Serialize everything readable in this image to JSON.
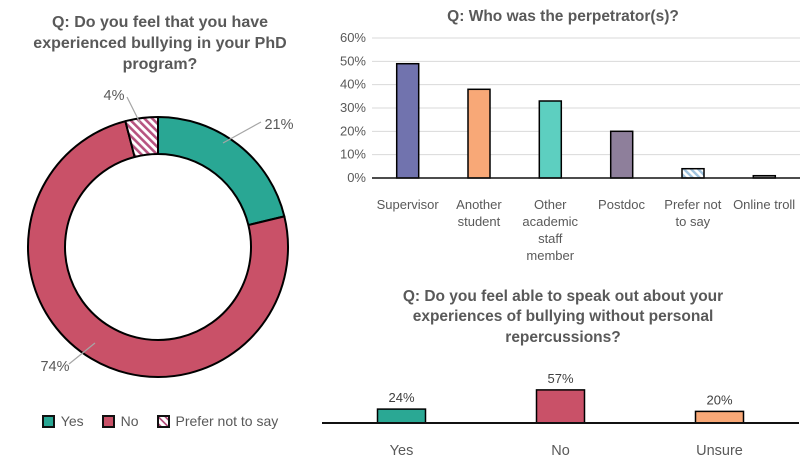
{
  "styles": {
    "background": "#FFFFFF",
    "title_color": "#595959",
    "axis_text_color": "#595959",
    "gridline_color": "#D9D9D9",
    "leader_line_color": "#A6A6A6",
    "data_label_color": "#3F3F3F",
    "outline_color": "#000000"
  },
  "chart_data": [
    {
      "id": "experienced-bullying-donut",
      "type": "pie",
      "subtype": "donut",
      "title": "Q: Do you feel that you have experienced bullying in your PhD program?",
      "unit": "%",
      "start_angle": "top",
      "direction": "clockwise",
      "legend_position": "bottom",
      "hatch_color": "#B75380",
      "slices": [
        {
          "label": "Yes",
          "value": 21,
          "display": "21%",
          "color": "#29A794",
          "hatch": false
        },
        {
          "label": "No",
          "value": 74,
          "display": "74%",
          "color": "#C95168",
          "hatch": false
        },
        {
          "label": "Prefer not to say",
          "value": 4,
          "display": "4%",
          "color": "#B75380",
          "hatch": true
        }
      ]
    },
    {
      "id": "perpetrator-bar",
      "type": "bar",
      "title": "Q: Who was the perpetrator(s)?",
      "unit": "%",
      "categories": [
        "Supervisor",
        "Another student",
        "Other academic staff member",
        "Postdoc",
        "Prefer not to say",
        "Online troll"
      ],
      "values": [
        49,
        38,
        33,
        20,
        4,
        1
      ],
      "bar_colors": [
        "#7173AE",
        "#F8A877",
        "#5DCFC0",
        "#8E7F9B",
        "#9FC3DE",
        "#ABABAB"
      ],
      "bar_hatch": [
        false,
        false,
        false,
        false,
        true,
        false
      ],
      "hatch_color": "#9FC3DE",
      "ylim": [
        0,
        60
      ],
      "yticks": [
        0,
        10,
        20,
        30,
        40,
        50,
        60
      ],
      "ytick_labels": [
        "0%",
        "10%",
        "20%",
        "30%",
        "40%",
        "50%",
        "60%"
      ],
      "grid": true,
      "data_labels": false,
      "legend": "none"
    },
    {
      "id": "speak-out-bar",
      "type": "bar",
      "title": "Q: Do you feel able to speak out about your experiences of bullying without personal repercussions?",
      "unit": "%",
      "categories": [
        "Yes",
        "No",
        "Unsure"
      ],
      "values": [
        24,
        57,
        20
      ],
      "data_label_texts": [
        "24%",
        "57%",
        "20%"
      ],
      "bar_colors": [
        "#2AA894",
        "#C95168",
        "#F8A877"
      ],
      "bar_hatch": [
        false,
        false,
        false
      ],
      "hatch_color": "#9FC3DE",
      "ylim": [
        0,
        100
      ],
      "yticks": [],
      "ytick_labels": [],
      "grid": false,
      "data_labels": true,
      "legend": "none"
    }
  ]
}
